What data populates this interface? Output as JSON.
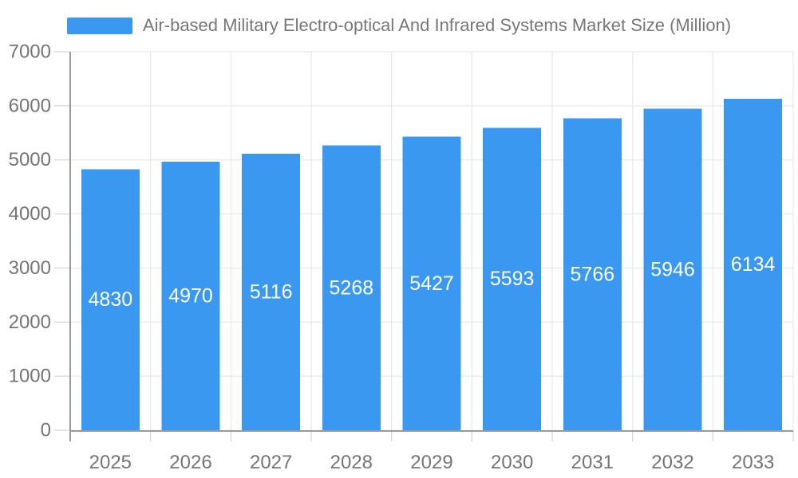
{
  "chart_data": {
    "type": "bar",
    "title": "Air-based Military Electro-optical And Infrared Systems Market Size (Million)",
    "legend": {
      "label": "Air-based Military Electro-optical And Infrared Systems Market Size (Million)",
      "position": "top"
    },
    "categories": [
      "2025",
      "2026",
      "2027",
      "2028",
      "2029",
      "2030",
      "2031",
      "2032",
      "2033"
    ],
    "values": [
      4830,
      4970,
      5116,
      5268,
      5427,
      5593,
      5766,
      5946,
      6134
    ],
    "xlabel": "",
    "ylabel": "",
    "ylim": [
      0,
      7000
    ],
    "y_ticks": [
      0,
      1000,
      2000,
      3000,
      4000,
      5000,
      6000,
      7000
    ],
    "grid": true,
    "value_labels_shown": true,
    "colors": {
      "bar": "#3B98F0",
      "grid": "#e5e5e5",
      "axis": "#999999",
      "tick": "#cccccc",
      "axis_label": "#757575",
      "title": "#777777",
      "value_label": "#ffffff",
      "background": "#ffffff"
    }
  }
}
